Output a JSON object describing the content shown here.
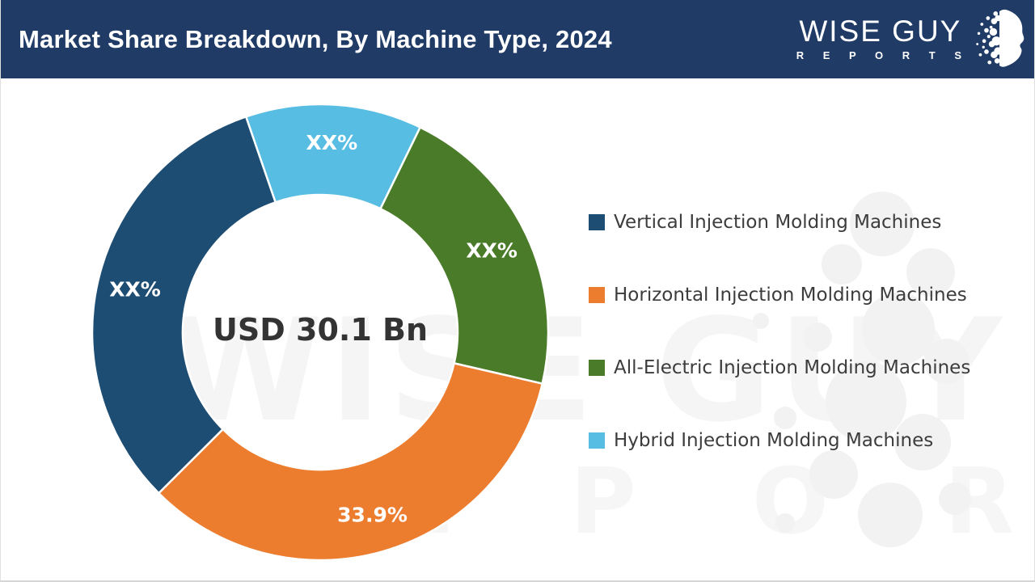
{
  "header": {
    "title": "Market Share Breakdown, By Machine Type, 2024",
    "logo": {
      "wordmark": "WISE GUY",
      "subtext": "R E P O R T S"
    }
  },
  "watermark": {
    "line1": "WISE GUY",
    "line2": "R E P O R T S"
  },
  "chart_data": {
    "type": "pie",
    "subtype": "donut",
    "title": "Market Share Breakdown, By Machine Type, 2024",
    "center_label": "USD 30.1 Bn",
    "units": "percent of market share",
    "start_angle_deg": -19,
    "clockwise": true,
    "legend_position": "right",
    "series": [
      {
        "name": "Hybrid Injection Molding Machines",
        "label": "XX%",
        "value": 12.5,
        "color": "#57bde3"
      },
      {
        "name": "All-Electric Injection Molding Machines",
        "label": "XX%",
        "value": 21.4,
        "color": "#4a7b29"
      },
      {
        "name": "Horizontal Injection Molding Machines",
        "label": "33.9%",
        "value": 33.9,
        "color": "#ec7d2f"
      },
      {
        "name": "Vertical Injection Molding Machines",
        "label": "XX%",
        "value": 32.2,
        "color": "#1e4d73"
      }
    ]
  },
  "legend": {
    "items": [
      {
        "label": "Vertical Injection Molding Machines",
        "color": "#1e4d73"
      },
      {
        "label": "Horizontal Injection Molding Machines",
        "color": "#ec7d2f"
      },
      {
        "label": "All-Electric Injection Molding Machines",
        "color": "#4a7b29"
      },
      {
        "label": "Hybrid Injection Molding Machines",
        "color": "#57bde3"
      }
    ]
  }
}
